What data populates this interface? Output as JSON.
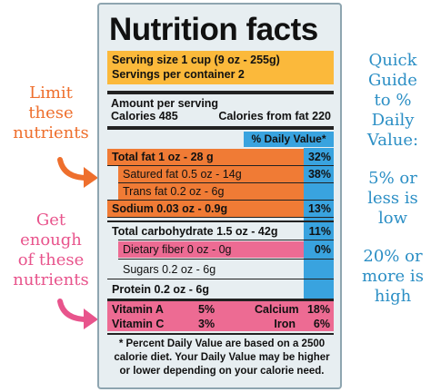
{
  "side_text": {
    "limit": [
      "Limit",
      "these",
      "nutrients"
    ],
    "get": [
      "Get",
      "enough",
      "of these",
      "nutrients"
    ],
    "guide": [
      "Quick",
      "Guide",
      "to %",
      "Daily",
      "Value:"
    ],
    "low": [
      "5% or",
      "less is",
      "low"
    ],
    "high": [
      "20% or",
      "more is",
      "high"
    ]
  },
  "colors": {
    "orange": "#f07b35",
    "pink": "#ed6b93",
    "blue": "#39a3df",
    "yellow": "#fbb93b",
    "guide_blue": "#2c8fc5"
  },
  "label": {
    "title": "Nutrition facts",
    "serving_size": "Serving size 1 cup (9 oz - 255g)",
    "servings_per_container": "Servings per container 2",
    "amount_per_serving": "Amount per serving",
    "calories": "Calories 485",
    "calories_from_fat": "Calories from fat 220",
    "dv_header": "% Daily Value*",
    "rows": [
      {
        "label": "Total fat 1 oz - 28 g",
        "pct": "32%"
      },
      {
        "label": "Satured fat 0.5 oz - 14g",
        "pct": "38%"
      },
      {
        "label": "Trans fat 0.2 oz - 6g",
        "pct": ""
      },
      {
        "label": "Sodium 0.03 oz - 0.9g",
        "pct": "13%"
      },
      {
        "label": "Total carbohydrate 1.5 oz - 42g",
        "pct": "11%"
      },
      {
        "label": "Dietary fiber 0 oz - 0g",
        "pct": "0%"
      },
      {
        "label": "Sugars 0.2 oz - 6g",
        "pct": ""
      },
      {
        "label": "Protein 0.2 oz - 6g",
        "pct": ""
      }
    ],
    "vitamins": {
      "vit_a": "Vitamin A",
      "vit_a_pct": "5%",
      "vit_c": "Vitamin C",
      "vit_c_pct": "3%",
      "calcium": "Calcium",
      "calcium_pct": "18%",
      "iron": "Iron",
      "iron_pct": "6%"
    },
    "footnote": "* Percent Daily Value are based on a 2500 calorie diet. Your Daily Value may be higher or lower depending on your calorie need."
  }
}
